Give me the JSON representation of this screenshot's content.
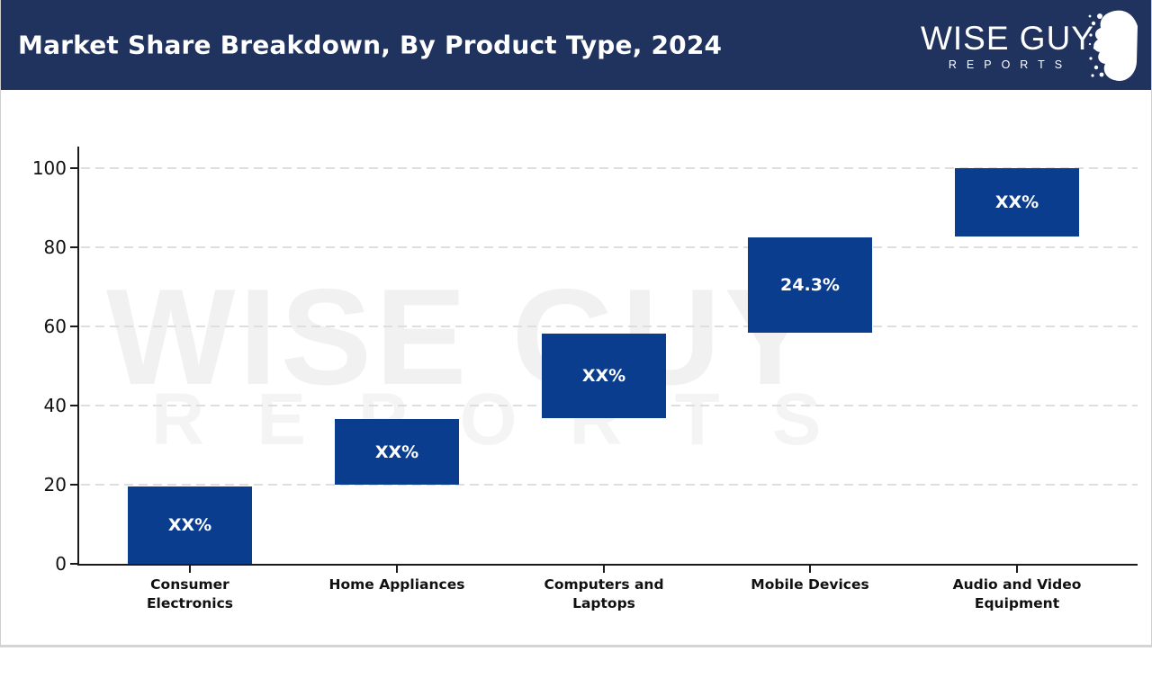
{
  "header": {
    "title": "Market Share Breakdown, By Product Type, 2024",
    "brand": {
      "line1": "WISE GUY",
      "line2": "REPORTS"
    }
  },
  "watermark": {
    "line1": "WISE GUY",
    "line2": "REPORTS"
  },
  "colors": {
    "header_bg": "#20335f",
    "bar": "#0b3d8f",
    "value_label": "#ffffff",
    "gridline": "#dedede",
    "axis": "#1a1a1a",
    "frame_edge": "#d4d4d4"
  },
  "chart_data": {
    "type": "bar",
    "subtype": "floating-waterfall",
    "title": "Market Share Breakdown, By Product Type, 2024",
    "xlabel": "",
    "ylabel": "",
    "ylim": [
      0,
      100
    ],
    "yticks": [
      0,
      20,
      40,
      60,
      80,
      100
    ],
    "grid": "horizontal-dashed",
    "legend": "none",
    "categories": [
      "Consumer Electronics",
      "Home Appliances",
      "Computers and Laptops",
      "Mobile Devices",
      "Audio and Video Equipment"
    ],
    "bars": [
      {
        "category": "Consumer Electronics",
        "label_lines": "Consumer\nElectronics",
        "start": 0,
        "end": 19.6,
        "value_label": "XX%"
      },
      {
        "category": "Home Appliances",
        "label_lines": "Home Appliances",
        "start": 19.9,
        "end": 36.6,
        "value_label": "XX%"
      },
      {
        "category": "Computers and Laptops",
        "label_lines": "Computers and\nLaptops",
        "start": 36.8,
        "end": 58.2,
        "value_label": "XX%"
      },
      {
        "category": "Mobile Devices",
        "label_lines": "Mobile Devices",
        "start": 58.3,
        "end": 82.6,
        "value_label": "24.3%"
      },
      {
        "category": "Audio and Video Equipment",
        "label_lines": "Audio and Video\nEquipment",
        "start": 82.7,
        "end": 100,
        "value_label": "XX%"
      }
    ]
  }
}
